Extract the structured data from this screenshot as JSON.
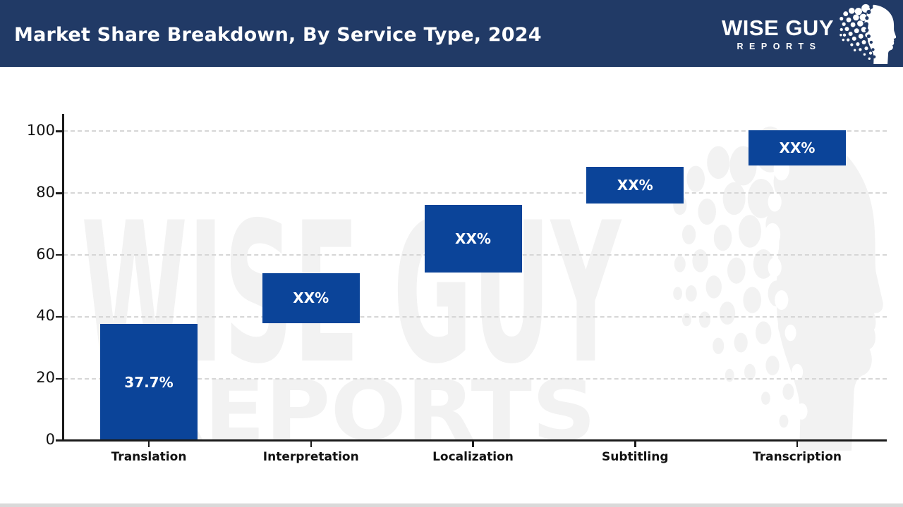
{
  "header": {
    "title": "Market Share Breakdown, By Service Type, 2024",
    "logo": {
      "line1": "WISE GUY",
      "line2": "REPORTS"
    }
  },
  "watermark": {
    "line1": "WISE GUY",
    "line2": "REPORTS"
  },
  "chart_data": {
    "type": "bar",
    "subtype": "waterfall",
    "title": "Market Share Breakdown, By Service Type, 2024",
    "categories": [
      "Translation",
      "Interpretation",
      "Localization",
      "Subtitling",
      "Transcription"
    ],
    "segments": [
      {
        "category": "Translation",
        "start": 0,
        "end": 37.7,
        "label": "37.7%"
      },
      {
        "category": "Interpretation",
        "start": 38.0,
        "end": 54.1,
        "label": "XX%"
      },
      {
        "category": "Localization",
        "start": 54.4,
        "end": 76.3,
        "label": "XX%"
      },
      {
        "category": "Subtitling",
        "start": 76.7,
        "end": 88.5,
        "label": "XX%"
      },
      {
        "category": "Transcription",
        "start": 88.9,
        "end": 100.4,
        "label": "XX%"
      }
    ],
    "xlabel": "",
    "ylabel": "",
    "ylim": [
      0,
      106
    ],
    "yticks": [
      0,
      20,
      40,
      60,
      80,
      100
    ],
    "grid": "horizontal-dashed",
    "legend": "none",
    "bar_color": "#0b4499",
    "bar_label_color": "#ffffff",
    "axis_color": "#1a1a1a",
    "header_bg_color": "#213a66",
    "watermark_color": "#f2f2f2"
  }
}
